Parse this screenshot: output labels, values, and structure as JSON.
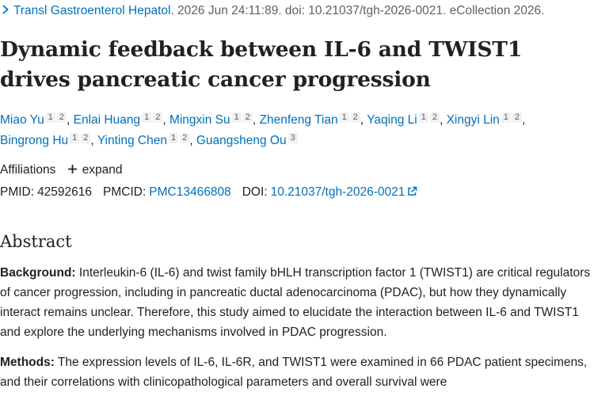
{
  "citation": {
    "journal": "Transl Gastroenterol Hepatol",
    "rest": ". 2026 Jun 24:11:89. doi: 10.21037/tgh-2026-0021. eCollection 2026."
  },
  "article": {
    "title": "Dynamic feedback between IL-6 and TWIST1 drives pancreatic cancer progression"
  },
  "authors": [
    {
      "name": "Miao Yu",
      "affs": [
        "1",
        "2"
      ]
    },
    {
      "name": "Enlai Huang",
      "affs": [
        "1",
        "2"
      ]
    },
    {
      "name": "Mingxin Su",
      "affs": [
        "1",
        "2"
      ]
    },
    {
      "name": "Zhenfeng Tian",
      "affs": [
        "1",
        "2"
      ]
    },
    {
      "name": "Yaqing Li",
      "affs": [
        "1",
        "2"
      ]
    },
    {
      "name": "Xingyi Lin",
      "affs": [
        "1",
        "2"
      ]
    },
    {
      "name": "Bingrong Hu",
      "affs": [
        "1",
        "2"
      ]
    },
    {
      "name": "Yinting Chen",
      "affs": [
        "1",
        "2"
      ]
    },
    {
      "name": "Guangsheng Ou",
      "affs": [
        "3"
      ]
    }
  ],
  "affiliations": {
    "label": "Affiliations",
    "expand_label": "expand"
  },
  "identifiers": {
    "pmid_label": "PMID:",
    "pmid": "42592616",
    "pmcid_label": "PMCID:",
    "pmcid": "PMC13466808",
    "doi_label": "DOI:",
    "doi": "10.21037/tgh-2026-0021"
  },
  "abstract": {
    "heading": "Abstract",
    "background_label": "Background:",
    "background_text": " Interleukin-6 (IL-6) and twist family bHLH transcription factor 1 (TWIST1) are critical regulators of cancer progression, including in pancreatic ductal adenocarcinoma (PDAC), but how they dynamically interact remains unclear. Therefore, this study aimed to elucidate the interaction between IL-6 and TWIST1 and explore the underlying mechanisms involved in PDAC progression.",
    "methods_label": "Methods:",
    "methods_text": " The expression levels of IL-6, IL-6R, and TWIST1 were examined in 66 PDAC patient specimens, and their correlations with clinicopathological parameters and overall survival were"
  },
  "colors": {
    "link": "#0071bc",
    "text": "#212121",
    "muted": "#5b616b",
    "badge_bg": "#f1f1f1"
  },
  "icons": {
    "breadcrumb": "chevron-right-icon",
    "expand": "plus-icon",
    "doi_external": "external-link-icon"
  }
}
